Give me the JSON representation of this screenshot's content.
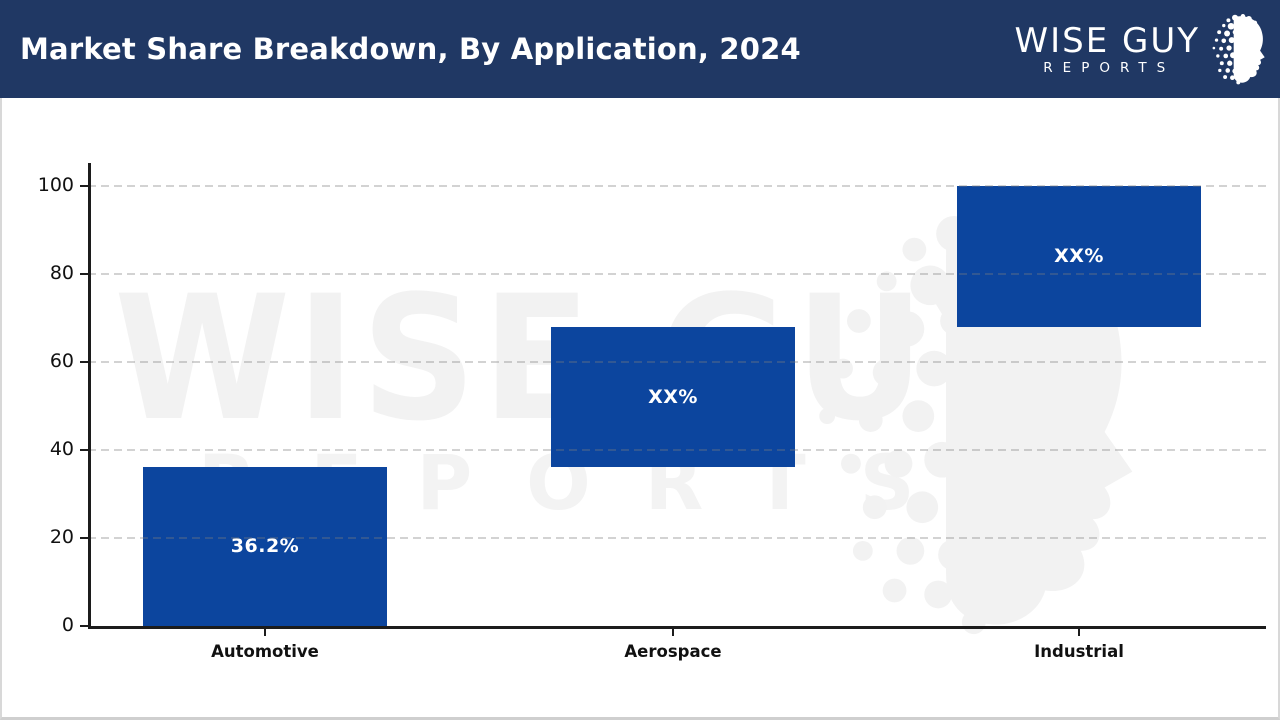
{
  "header": {
    "title": "Market Share Breakdown, By Application, 2024",
    "brand": {
      "name_top": "WISE GUY",
      "name_bottom": "REPORTS"
    }
  },
  "watermark": {
    "line1": "WISE GUY",
    "line2": "REPORTS"
  },
  "chart_data": {
    "type": "bar",
    "variant": "floating-waterfall",
    "title": "Market Share Breakdown, By Application, 2024",
    "categories": [
      "Automotive",
      "Aerospace",
      "Industrial"
    ],
    "segments": [
      {
        "category": "Automotive",
        "start": 0,
        "end": 36.2,
        "label": "36.2%"
      },
      {
        "category": "Aerospace",
        "start": 36.2,
        "end": 68,
        "label": "XX%"
      },
      {
        "category": "Industrial",
        "start": 68,
        "end": 100,
        "label": "XX%"
      }
    ],
    "xlabel": "",
    "ylabel": "",
    "yticks": [
      0,
      20,
      40,
      60,
      80,
      100
    ],
    "ylim": [
      0,
      105
    ],
    "grid": "dashed-horizontal",
    "legend": "none",
    "bar_color": "#0c459e",
    "bar_label_color": "#ffffff"
  },
  "colors": {
    "header_bg": "#203864",
    "header_text": "#ffffff",
    "bar": "#0c459e",
    "watermark": "#f2f2f2",
    "axis": "#1c1c1c",
    "grid": "#c8c8c8",
    "frame_border": "#d8d8d8"
  }
}
